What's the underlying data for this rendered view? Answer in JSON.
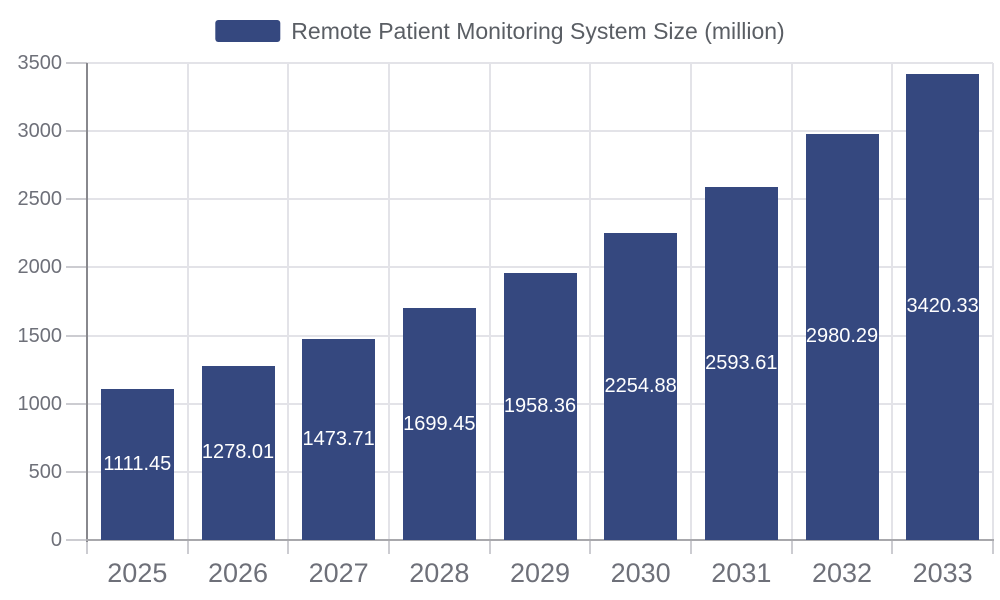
{
  "legend": {
    "label": "Remote Patient Monitoring System Size (million)"
  },
  "chart_data": {
    "type": "bar",
    "title": "Remote Patient Monitoring System Size (million)",
    "categories": [
      "2025",
      "2026",
      "2027",
      "2028",
      "2029",
      "2030",
      "2031",
      "2032",
      "2033"
    ],
    "values": [
      1111.45,
      1278.01,
      1473.71,
      1699.45,
      1958.36,
      2254.88,
      2593.61,
      2980.29,
      3420.33
    ],
    "bar_labels": [
      "1111.45",
      "1278.01",
      "1473.71",
      "1699.45",
      "1958.36",
      "2254.88",
      "2593.61",
      "2980.29",
      "3420.33"
    ],
    "xlabel": "",
    "ylabel": "",
    "ylim": [
      0,
      3500
    ],
    "y_ticks": [
      0,
      500,
      1000,
      1500,
      2000,
      2500,
      3000,
      3500
    ],
    "grid": true,
    "legend_position": "top",
    "colors": {
      "bar": "#35487F",
      "bar_label": "#FFFFFF",
      "axis_label": "#6E7079",
      "legend_text": "#5A5E64",
      "grid_line": "#E3E3E8",
      "x_axis_line": "#A8A8AC",
      "y_axis_line": "#88888D",
      "tick": "#CCCCD1",
      "background": "#FFFFFF"
    }
  }
}
